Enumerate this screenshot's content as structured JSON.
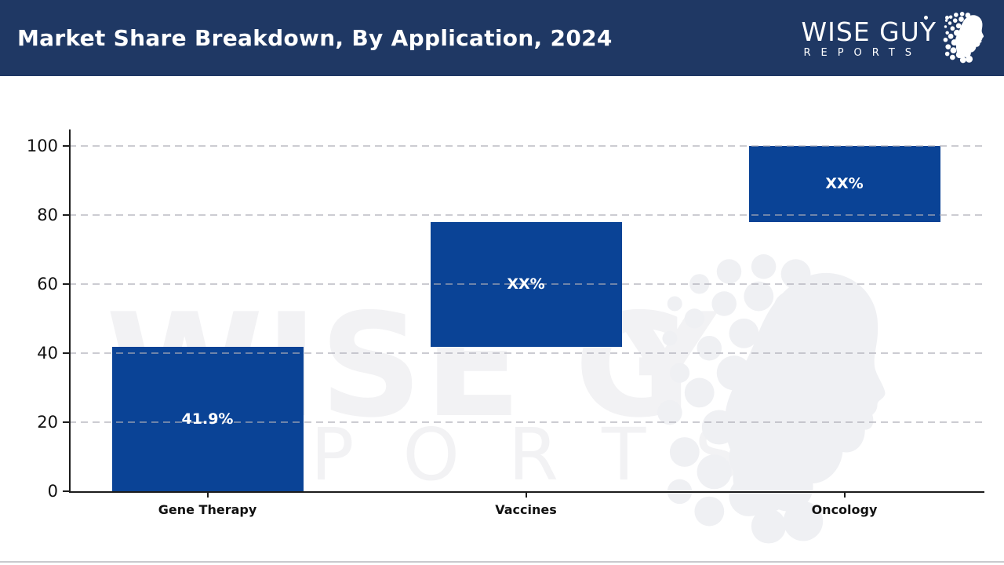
{
  "header": {
    "title": "Market Share Breakdown, By Application, 2024",
    "bg_color": "#1f3864",
    "logo": {
      "wordmark": "WISE GUY",
      "sub": "REPORTS"
    }
  },
  "watermark": {
    "wordmark_left": "WISE G",
    "wordmark_y": "Y",
    "sub": "REPORTS"
  },
  "chart_data": {
    "type": "bar",
    "variant": "waterfall-cumulative",
    "title": "Market Share Breakdown, By Application, 2024",
    "xlabel": "",
    "ylabel": "",
    "categories": [
      "Gene Therapy",
      "Vaccines",
      "Oncology"
    ],
    "segments": [
      {
        "category": "Gene Therapy",
        "start": 0,
        "end": 41.9,
        "value_label": "41.9%"
      },
      {
        "category": "Vaccines",
        "start": 41.9,
        "end": 78.0,
        "value_label": "XX%"
      },
      {
        "category": "Oncology",
        "start": 78.0,
        "end": 100.0,
        "value_label": "XX%"
      }
    ],
    "yticks": [
      0,
      20,
      40,
      60,
      80,
      100
    ],
    "ylim": [
      0,
      105
    ],
    "grid": "horizontal-dashed",
    "legend": "none",
    "colors": {
      "bar": "#0a4396",
      "bar_label": "#ffffff",
      "grid": "#d9d9d9",
      "axis": "#1c1c1c",
      "tick_label": "#111111",
      "header_bg": "#1f3864",
      "watermark": "#f2f2f4"
    }
  }
}
